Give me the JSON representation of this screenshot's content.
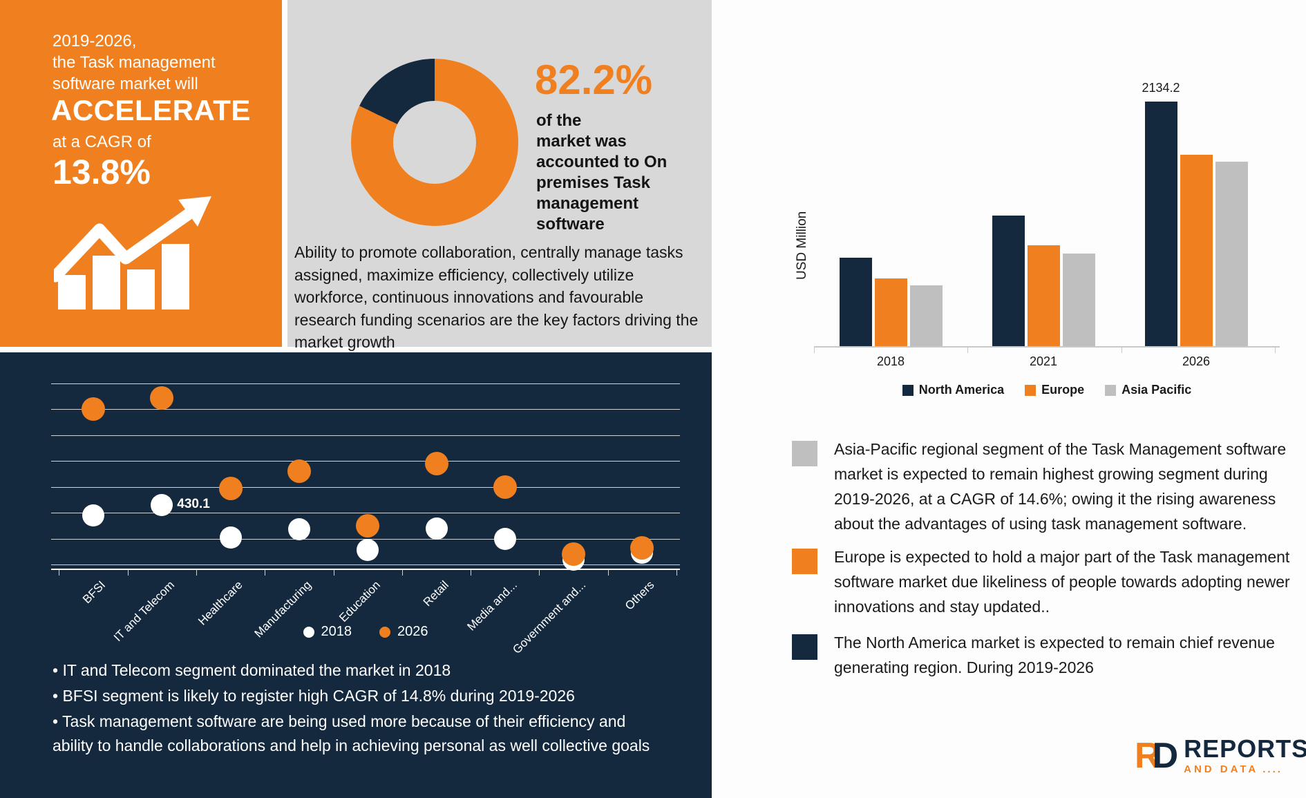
{
  "colors": {
    "orange": "#F0801F",
    "navy": "#14283E",
    "panel_gray": "#D8D8D8",
    "bar_gray": "#BFBFBF",
    "white": "#FFFFFF"
  },
  "accelerate_panel": {
    "intro_lines": [
      "2019-2026,",
      "the Task management",
      "software market will"
    ],
    "accelerate_word": "ACCELERATE",
    "cagr_prefix": "at a CAGR of",
    "cagr_value": "13.8%"
  },
  "onpremise_panel": {
    "percent": "82.2%",
    "caption_lines": [
      "of the",
      "market was",
      "accounted to On",
      "premises Task",
      "management",
      "software"
    ],
    "body": "Ability to promote collaboration, centrally manage tasks assigned, maximize efficiency, collectively utilize workforce, continuous innovations and  favourable research funding scenarios are the key factors driving the  market growth"
  },
  "segment_panel": {
    "bullets": [
      "• IT and Telecom  segment dominated the market in 2018",
      "• BFSI segment is likely to register high CAGR of 14.8% during 2019-2026",
      "• Task management software  are being used more because of their efficiency and ability to handle collaborations and help in achieving personal as well collective goals"
    ]
  },
  "region_panel": {
    "bullets": [
      {
        "swatch_color": "#BFBFBF",
        "text": "Asia-Pacific regional segment of the Task Management software market is expected to remain highest growing segment during 2019-2026, at a CAGR of 14.6%; owing it the rising awareness about the  advantages of using task management software."
      },
      {
        "swatch_color": "#F0801F",
        "text": "Europe is  expected to hold a major part of the Task management software market due likeliness of people towards adopting newer innovations and stay updated.."
      },
      {
        "swatch_color": "#14283E",
        "text": "The North America market  is expected to remain chief revenue generating region. During 2019-2026"
      }
    ]
  },
  "brand": {
    "mark_r": "R",
    "mark_d": "D",
    "name_top": "REPORTS",
    "name_bottom": "AND DATA",
    "dots": "...."
  },
  "chart_data": [
    {
      "type": "pie",
      "labels": [
        "On premises Task management software",
        "Others"
      ],
      "values": [
        82.2,
        17.8
      ],
      "colors": [
        "#F0801F",
        "#14283E"
      ],
      "title": "82.2% of the market was accounted to On premises Task management software"
    },
    {
      "type": "scatter",
      "categories": [
        "BFSI",
        "IT and Telecom",
        "Healthcare",
        "Manufacturing",
        "Education",
        "Retail",
        "Media and...",
        "Government and...",
        "Others"
      ],
      "series": [
        {
          "name": "2018",
          "color": "#FFFFFF",
          "values": [
            390,
            430.1,
            305,
            335,
            255,
            340,
            300,
            220,
            245
          ]
        },
        {
          "name": "2026",
          "color": "#F0801F",
          "values": [
            800,
            845,
            495,
            560,
            350,
            590,
            500,
            240,
            265
          ]
        }
      ],
      "ylim": [
        200,
        900
      ],
      "gridline_values": [
        200,
        300,
        400,
        500,
        600,
        700,
        800,
        900
      ],
      "annotation": {
        "series": "2018",
        "category": "IT and Telecom",
        "label": "430.1"
      },
      "legend_position": "bottom"
    },
    {
      "type": "bar",
      "categories": [
        "2018",
        "2021",
        "2026"
      ],
      "series": [
        {
          "name": "North America",
          "color": "#14283E",
          "values": [
            770,
            1140,
            2134.2
          ]
        },
        {
          "name": "Europe",
          "color": "#F0801F",
          "values": [
            590,
            880,
            1670
          ]
        },
        {
          "name": "Asia Pacific",
          "color": "#BFBFBF",
          "values": [
            530,
            810,
            1610
          ]
        }
      ],
      "ylabel": "USD Million",
      "ylim": [
        0,
        2400
      ],
      "annotation": {
        "series": "North America",
        "category": "2026",
        "label": "2134.2"
      },
      "legend_position": "bottom"
    }
  ]
}
